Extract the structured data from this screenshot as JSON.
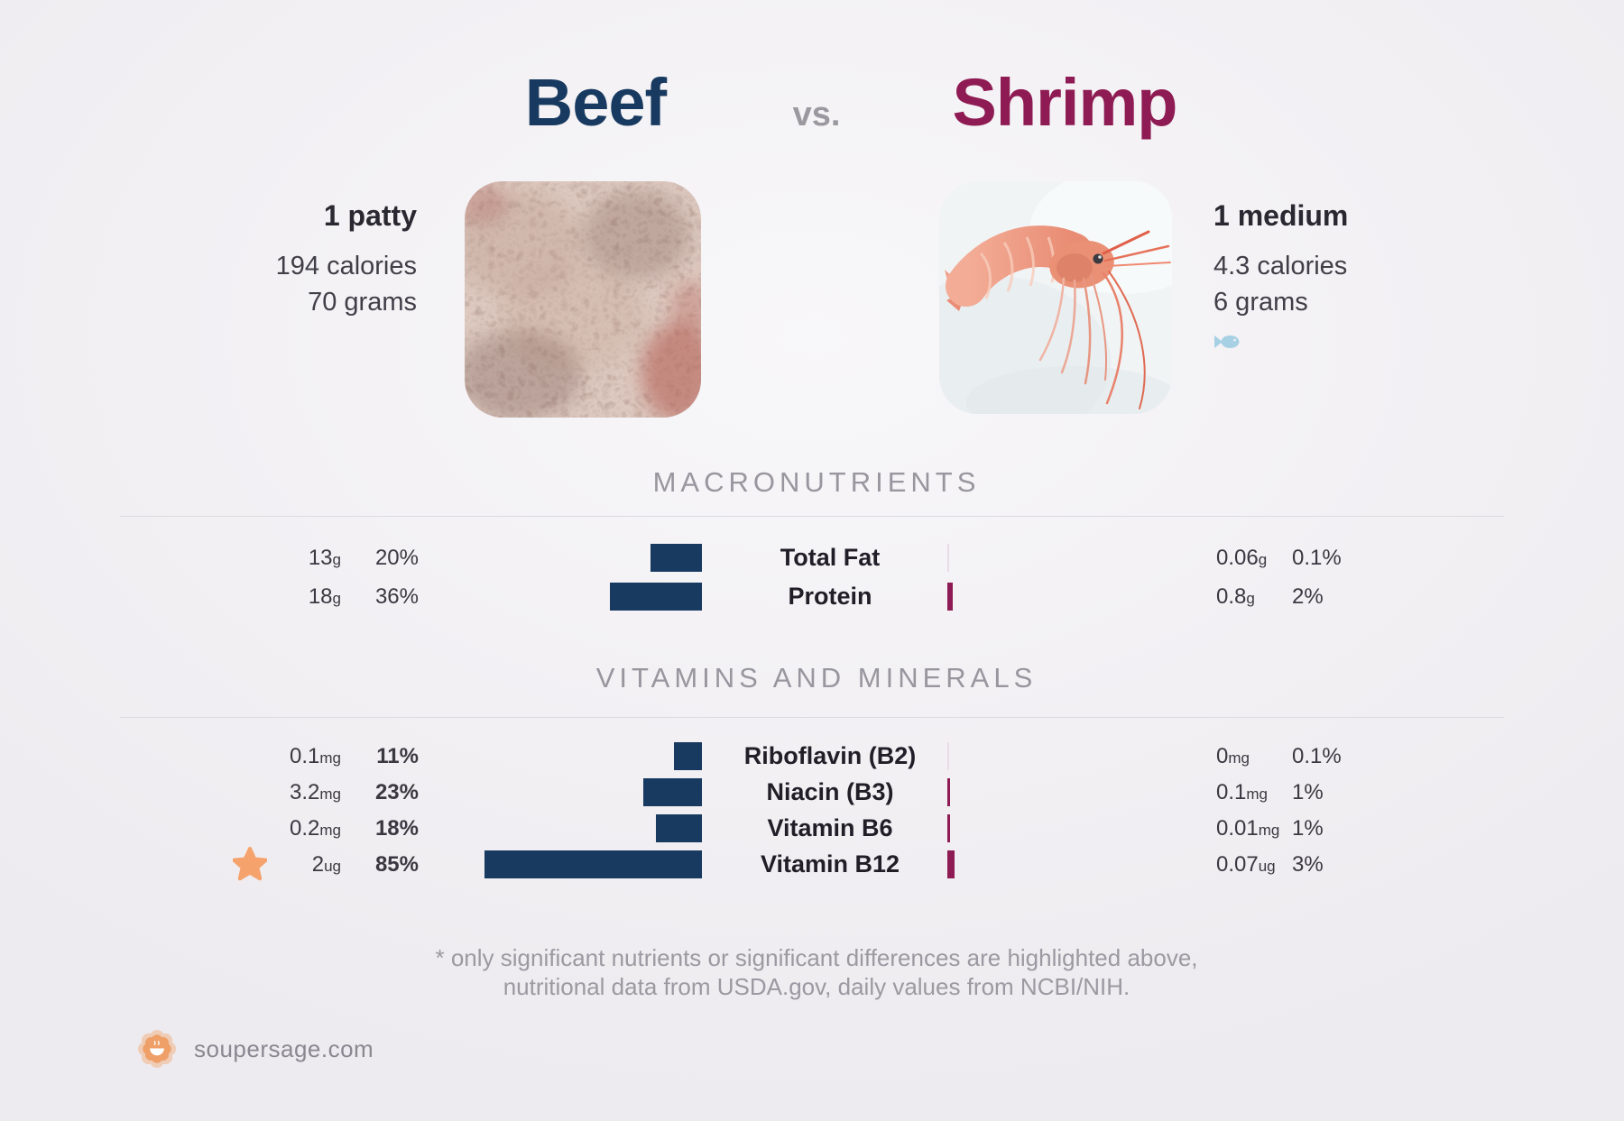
{
  "header": {
    "beef_title": "Beef",
    "vs_label": "vs.",
    "shrimp_title": "Shrimp"
  },
  "colors": {
    "beef_accent": "#183a60",
    "shrimp_accent": "#8e1b53",
    "heading_gray": "#98969e",
    "star_orange": "#f5a26d",
    "fish_blue": "#a7d0e4"
  },
  "icons": {
    "fish": "fish-icon",
    "star": "star-icon",
    "brand": "soup-bowl-flower-icon"
  },
  "servings": {
    "beef": {
      "size": "1 patty",
      "calories": "194 calories",
      "weight": "70 grams"
    },
    "shrimp": {
      "size": "1 medium",
      "calories": "4.3 calories",
      "weight": "6 grams"
    }
  },
  "sections": {
    "macros_heading": "MACRONUTRIENTS",
    "vitamins_heading": "VITAMINS AND MINERALS"
  },
  "macros": [
    {
      "label": "Total Fat",
      "beef": {
        "value": "13",
        "unit": "g",
        "pct": "20%",
        "pct_num": 20
      },
      "shrimp": {
        "value": "0.06",
        "unit": "g",
        "pct": "0.1%",
        "pct_num": 0.1
      }
    },
    {
      "label": "Protein",
      "beef": {
        "value": "18",
        "unit": "g",
        "pct": "36%",
        "pct_num": 36
      },
      "shrimp": {
        "value": "0.8",
        "unit": "g",
        "pct": "2%",
        "pct_num": 2
      }
    }
  ],
  "vitamins": [
    {
      "label": "Riboflavin (B2)",
      "beef": {
        "value": "0.1",
        "unit": "mg",
        "pct": "11%",
        "pct_num": 11
      },
      "shrimp": {
        "value": "0",
        "unit": "mg",
        "pct": "0.1%",
        "pct_num": 0.1
      },
      "starred": false
    },
    {
      "label": "Niacin (B3)",
      "beef": {
        "value": "3.2",
        "unit": "mg",
        "pct": "23%",
        "pct_num": 23
      },
      "shrimp": {
        "value": "0.1",
        "unit": "mg",
        "pct": "1%",
        "pct_num": 1
      },
      "starred": false
    },
    {
      "label": "Vitamin B6",
      "beef": {
        "value": "0.2",
        "unit": "mg",
        "pct": "18%",
        "pct_num": 18
      },
      "shrimp": {
        "value": "0.01",
        "unit": "mg",
        "pct": "1%",
        "pct_num": 1
      },
      "starred": false
    },
    {
      "label": "Vitamin B12",
      "beef": {
        "value": "2",
        "unit": "ug",
        "pct": "85%",
        "pct_num": 85
      },
      "shrimp": {
        "value": "0.07",
        "unit": "ug",
        "pct": "3%",
        "pct_num": 3
      },
      "starred": true
    }
  ],
  "footnote": {
    "line1": "* only significant nutrients or significant differences are highlighted above,",
    "line2": "nutritional data from USDA.gov, daily values from NCBI/NIH."
  },
  "brand": "soupersage.com",
  "chart_data": {
    "type": "bar",
    "title": "Beef vs. Shrimp",
    "subtitle": "paired horizontal bars, % daily value, beef bars grow right-to-left toward center labels, shrimp bars grow left-to-right",
    "categories": [
      "Total Fat",
      "Protein",
      "Riboflavin (B2)",
      "Niacin (B3)",
      "Vitamin B6",
      "Vitamin B12"
    ],
    "series": [
      {
        "name": "Beef (1 patty, 70 grams, 194 calories)",
        "values_pct_daily_value": [
          20,
          36,
          11,
          23,
          18,
          85
        ],
        "amounts": [
          "13 g",
          "18 g",
          "0.1 mg",
          "3.2 mg",
          "0.2 mg",
          "2 ug"
        ],
        "color": "#183a60"
      },
      {
        "name": "Shrimp (1 medium, 6 grams, 4.3 calories)",
        "values_pct_daily_value": [
          0.1,
          2,
          0.1,
          1,
          1,
          3
        ],
        "amounts": [
          "0.06 g",
          "0.8 g",
          "0 mg",
          "0.1 mg",
          "0.01 mg",
          "0.07 ug"
        ],
        "color": "#8e1b53"
      }
    ],
    "highlighted": [
      "Vitamin B12 (beef, starred)"
    ],
    "xlabel": "",
    "ylabel": "",
    "xlim": [
      0,
      100
    ],
    "grid": false,
    "legend_position": "none"
  }
}
